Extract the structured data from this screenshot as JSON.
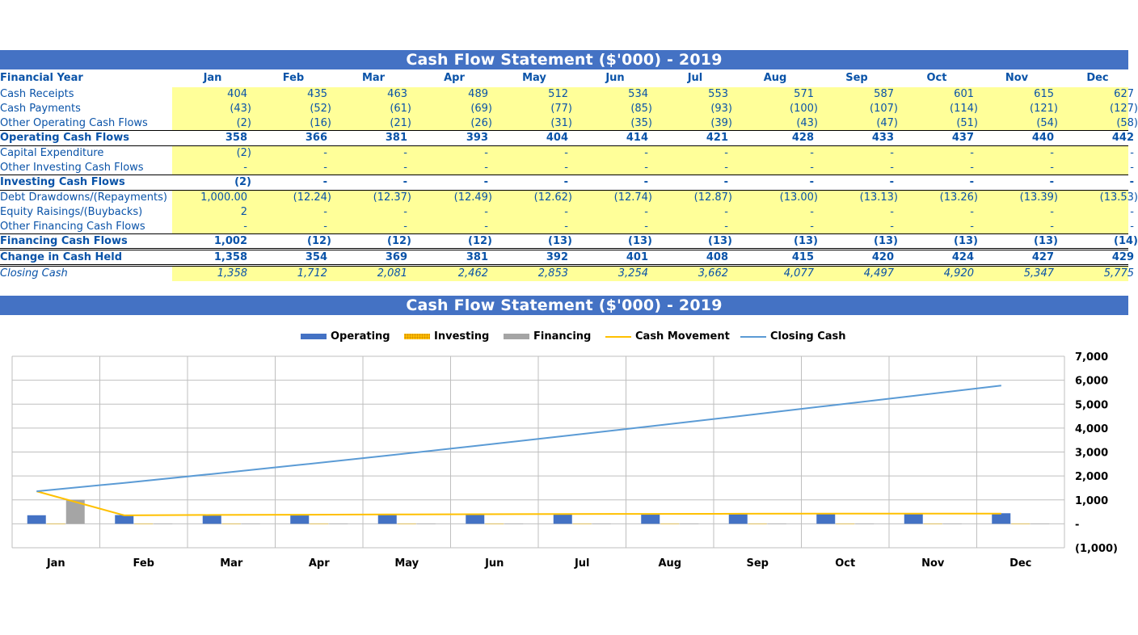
{
  "table": {
    "title": "Cash Flow Statement ($'000) - 2019",
    "header_label": "Financial Year",
    "months": [
      "Jan",
      "Feb",
      "Mar",
      "Apr",
      "May",
      "Jun",
      "Jul",
      "Aug",
      "Sep",
      "Oct",
      "Nov",
      "Dec"
    ],
    "rows": [
      {
        "key": "cash-receipts",
        "label": "Cash Receipts",
        "style": "normal",
        "values": [
          "404",
          "435",
          "463",
          "489",
          "512",
          "534",
          "553",
          "571",
          "587",
          "601",
          "615",
          "627"
        ]
      },
      {
        "key": "cash-payments",
        "label": "Cash Payments",
        "style": "normal",
        "values": [
          "(43)",
          "(52)",
          "(61)",
          "(69)",
          "(77)",
          "(85)",
          "(93)",
          "(100)",
          "(107)",
          "(114)",
          "(121)",
          "(127)"
        ]
      },
      {
        "key": "other-operating",
        "label": "Other Operating Cash Flows",
        "style": "normal",
        "values": [
          "(2)",
          "(16)",
          "(21)",
          "(26)",
          "(31)",
          "(35)",
          "(39)",
          "(43)",
          "(47)",
          "(51)",
          "(54)",
          "(58)"
        ]
      },
      {
        "key": "operating-total",
        "label": "Operating Cash Flows",
        "style": "bold",
        "values": [
          "358",
          "366",
          "381",
          "393",
          "404",
          "414",
          "421",
          "428",
          "433",
          "437",
          "440",
          "442"
        ]
      },
      {
        "key": "capex",
        "label": "Capital Expenditure",
        "style": "normal",
        "values": [
          "(2)",
          "-",
          "-",
          "-",
          "-",
          "-",
          "-",
          "-",
          "-",
          "-",
          "-",
          "-"
        ]
      },
      {
        "key": "other-investing",
        "label": "Other Investing Cash Flows",
        "style": "normal",
        "values": [
          "-",
          "-",
          "-",
          "-",
          "-",
          "-",
          "-",
          "-",
          "-",
          "-",
          "-",
          "-"
        ]
      },
      {
        "key": "investing-total",
        "label": "Investing Cash Flows",
        "style": "bold",
        "values": [
          "(2)",
          "-",
          "-",
          "-",
          "-",
          "-",
          "-",
          "-",
          "-",
          "-",
          "-",
          "-"
        ]
      },
      {
        "key": "debt",
        "label": "Debt Drawdowns/(Repayments)",
        "style": "normal",
        "values": [
          "1,000.00",
          "(12.24)",
          "(12.37)",
          "(12.49)",
          "(12.62)",
          "(12.74)",
          "(12.87)",
          "(13.00)",
          "(13.13)",
          "(13.26)",
          "(13.39)",
          "(13.53)"
        ]
      },
      {
        "key": "equity",
        "label": "Equity Raisings/(Buybacks)",
        "style": "normal",
        "values": [
          "2",
          "-",
          "-",
          "-",
          "-",
          "-",
          "-",
          "-",
          "-",
          "-",
          "-",
          "-"
        ]
      },
      {
        "key": "other-financing",
        "label": "Other Financing Cash Flows",
        "style": "normal",
        "values": [
          "-",
          "-",
          "-",
          "-",
          "-",
          "-",
          "-",
          "-",
          "-",
          "-",
          "-",
          "-"
        ]
      },
      {
        "key": "financing-total",
        "label": "Financing Cash Flows",
        "style": "bold",
        "values": [
          "1,002",
          "(12)",
          "(12)",
          "(12)",
          "(13)",
          "(13)",
          "(13)",
          "(13)",
          "(13)",
          "(13)",
          "(13)",
          "(14)"
        ]
      },
      {
        "key": "change-in-cash",
        "label": "Change in Cash Held",
        "style": "bold",
        "values": [
          "1,358",
          "354",
          "369",
          "381",
          "392",
          "401",
          "408",
          "415",
          "420",
          "424",
          "427",
          "429"
        ]
      },
      {
        "key": "closing-cash",
        "label": "Closing Cash",
        "style": "italic",
        "values": [
          "1,358",
          "1,712",
          "2,081",
          "2,462",
          "2,853",
          "3,254",
          "3,662",
          "4,077",
          "4,497",
          "4,920",
          "5,347",
          "5,775"
        ]
      }
    ]
  },
  "chart_data": {
    "type": "bar",
    "title": "Cash Flow Statement ($'000) - 2019",
    "categories": [
      "Jan",
      "Feb",
      "Mar",
      "Apr",
      "May",
      "Jun",
      "Jul",
      "Aug",
      "Sep",
      "Oct",
      "Nov",
      "Dec"
    ],
    "ylim": [
      -1000,
      7000
    ],
    "yticks": [
      -1000,
      0,
      1000,
      2000,
      3000,
      4000,
      5000,
      6000,
      7000
    ],
    "ytick_labels": [
      "(1,000)",
      "-",
      "1,000",
      "2,000",
      "3,000",
      "4,000",
      "5,000",
      "6,000",
      "7,000"
    ],
    "grid": true,
    "legend_position": "top",
    "xlabel": "",
    "ylabel": "",
    "series": [
      {
        "name": "Operating",
        "kind": "bar",
        "color": "#4472c4",
        "values": [
          358,
          366,
          381,
          393,
          404,
          414,
          421,
          428,
          433,
          437,
          440,
          442
        ]
      },
      {
        "name": "Investing",
        "kind": "bar",
        "color": "#ffc000",
        "values": [
          -2,
          0,
          0,
          0,
          0,
          0,
          0,
          0,
          0,
          0,
          0,
          0
        ]
      },
      {
        "name": "Financing",
        "kind": "bar",
        "color": "#a5a5a5",
        "values": [
          1002,
          -12,
          -12,
          -12,
          -13,
          -13,
          -13,
          -13,
          -13,
          -13,
          -13,
          -14
        ]
      },
      {
        "name": "Cash Movement",
        "kind": "line",
        "color": "#ffc000",
        "values": [
          1358,
          354,
          369,
          381,
          392,
          401,
          408,
          415,
          420,
          424,
          427,
          429
        ]
      },
      {
        "name": "Closing Cash",
        "kind": "line",
        "color": "#5b9bd5",
        "values": [
          1358,
          1712,
          2081,
          2462,
          2853,
          3254,
          3662,
          4077,
          4497,
          4920,
          5347,
          5775
        ]
      }
    ]
  }
}
